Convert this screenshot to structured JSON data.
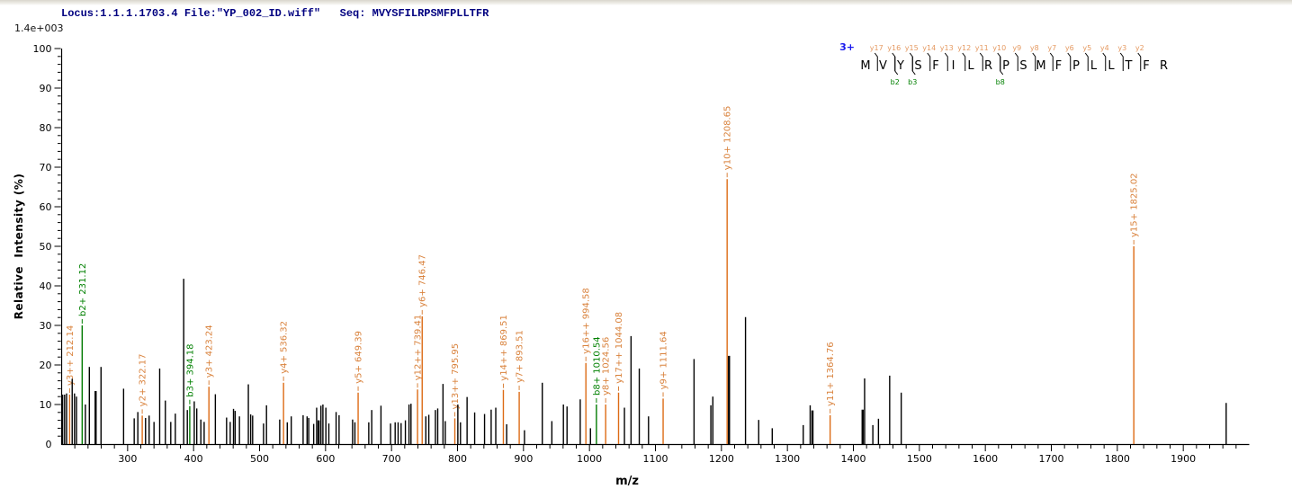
{
  "header": {
    "info_line": "Locus:1.1.1.1703.4 File:\"YP_002_ID.wiff\"   Seq: MVYSFILRPSMFPLLTFR",
    "scale_label": "1.4e+003"
  },
  "colors": {
    "background": "#ffffff",
    "axis": "#000000",
    "unassigned_peak": "#000000",
    "y_ion_line": "#dd6b15",
    "y_ion_label": "#d9823c",
    "ladder_y_label": "#e59a62",
    "b_ion_line": "#007a00",
    "b_ion_label": "#008000",
    "header_text": "#000080",
    "charge_text": "#1a1aee"
  },
  "ladder": {
    "charge_label": "3+",
    "residues": "MVYSFILRPSMFPLLTFR",
    "y_ion_junctions": [
      {
        "label": "y17",
        "after": 1
      },
      {
        "label": "y16",
        "after": 2
      },
      {
        "label": "y15",
        "after": 3
      },
      {
        "label": "y14",
        "after": 4
      },
      {
        "label": "y13",
        "after": 5
      },
      {
        "label": "y12",
        "after": 6
      },
      {
        "label": "y11",
        "after": 7
      },
      {
        "label": "y10",
        "after": 8
      },
      {
        "label": "y9",
        "after": 9
      },
      {
        "label": "y8",
        "after": 10
      },
      {
        "label": "y7",
        "after": 11
      },
      {
        "label": "y6",
        "after": 12
      },
      {
        "label": "y5",
        "after": 13
      },
      {
        "label": "y4",
        "after": 14
      },
      {
        "label": "y3",
        "after": 15
      },
      {
        "label": "y2",
        "after": 16
      }
    ],
    "b_ion_junctions": [
      {
        "label": "b2",
        "after": 2
      },
      {
        "label": "b3",
        "after": 3
      },
      {
        "label": "b8",
        "after": 8
      }
    ]
  },
  "chart_data": {
    "type": "bar",
    "subtype": "ms2_fragment_spectrum",
    "title": "",
    "xlabel": "m/z",
    "ylabel": "Relative  Intensity (%)",
    "xlim": [
      200,
      2000
    ],
    "ylim": [
      0,
      100
    ],
    "grid": false,
    "x_tick_labels": [
      300,
      400,
      500,
      600,
      700,
      800,
      900,
      1000,
      1100,
      1200,
      1300,
      1400,
      1500,
      1600,
      1700,
      1800,
      1900
    ],
    "x_minor_tick_step": 20,
    "x_major_tick_step": 100,
    "y_tick_labels": [
      0,
      10,
      20,
      30,
      40,
      50,
      60,
      70,
      80,
      90,
      100
    ],
    "y_minor_tick_step": 2,
    "y_major_tick_step": 10,
    "intensity_scale_note": "1.4e+003",
    "peaks": [
      {
        "mz": 201.5,
        "i": 12.5
      },
      {
        "mz": 204.5,
        "i": 12.5
      },
      {
        "mz": 207.5,
        "i": 12.8
      },
      {
        "mz": 212.14,
        "i": 12.5,
        "ion": "y3++",
        "label": "y3++ 212.14",
        "series": "y"
      },
      {
        "mz": 216.0,
        "i": 16.5
      },
      {
        "mz": 219.5,
        "i": 12.8
      },
      {
        "mz": 222.5,
        "i": 12.0
      },
      {
        "mz": 231.12,
        "i": 30.0,
        "ion": "b2+",
        "label": "b2+ 231.12",
        "series": "b"
      },
      {
        "mz": 236.0,
        "i": 10.0
      },
      {
        "mz": 242.0,
        "i": 19.5
      },
      {
        "mz": 251.5,
        "i": 13.4,
        "wide": true
      },
      {
        "mz": 259.7,
        "i": 19.5
      },
      {
        "mz": 293.9,
        "i": 14.0
      },
      {
        "mz": 310.0,
        "i": 6.5
      },
      {
        "mz": 315.5,
        "i": 8.1
      },
      {
        "mz": 322.17,
        "i": 7.2,
        "ion": "y2+",
        "label": "y2+ 322.17",
        "series": "y"
      },
      {
        "mz": 327.2,
        "i": 6.6
      },
      {
        "mz": 332.6,
        "i": 7.2
      },
      {
        "mz": 340.0,
        "i": 5.6
      },
      {
        "mz": 348.6,
        "i": 19.1
      },
      {
        "mz": 357.2,
        "i": 11.0
      },
      {
        "mz": 365.4,
        "i": 5.6
      },
      {
        "mz": 372.3,
        "i": 7.7
      },
      {
        "mz": 385.0,
        "i": 41.8
      },
      {
        "mz": 390.5,
        "i": 8.6
      },
      {
        "mz": 394.18,
        "i": 9.6,
        "ion": "b3+",
        "label": "b3+ 394.18",
        "series": "b"
      },
      {
        "mz": 401.0,
        "i": 10.8
      },
      {
        "mz": 404.8,
        "i": 9.0
      },
      {
        "mz": 411.0,
        "i": 6.2
      },
      {
        "mz": 416.0,
        "i": 5.6
      },
      {
        "mz": 423.24,
        "i": 14.5,
        "ion": "y3+",
        "label": "y3+ 423.24",
        "series": "y"
      },
      {
        "mz": 433.0,
        "i": 12.6
      },
      {
        "mz": 450.0,
        "i": 6.7
      },
      {
        "mz": 455.5,
        "i": 5.6
      },
      {
        "mz": 460.5,
        "i": 8.9
      },
      {
        "mz": 463.0,
        "i": 8.4
      },
      {
        "mz": 469.5,
        "i": 7.0
      },
      {
        "mz": 483.0,
        "i": 15.1
      },
      {
        "mz": 486.5,
        "i": 7.5
      },
      {
        "mz": 489.5,
        "i": 7.2
      },
      {
        "mz": 506.0,
        "i": 5.2
      },
      {
        "mz": 510.5,
        "i": 9.8
      },
      {
        "mz": 530.5,
        "i": 6.2
      },
      {
        "mz": 536.32,
        "i": 15.5,
        "ion": "y4+",
        "label": "y4+ 536.32",
        "series": "y"
      },
      {
        "mz": 542.0,
        "i": 5.5
      },
      {
        "mz": 548.0,
        "i": 7.0
      },
      {
        "mz": 566.0,
        "i": 7.3
      },
      {
        "mz": 572.0,
        "i": 7.0
      },
      {
        "mz": 574.5,
        "i": 6.6
      },
      {
        "mz": 582.0,
        "i": 5.1
      },
      {
        "mz": 586.5,
        "i": 9.2
      },
      {
        "mz": 589.5,
        "i": 6.0,
        "wide": true
      },
      {
        "mz": 593.0,
        "i": 9.7
      },
      {
        "mz": 596.0,
        "i": 10.0
      },
      {
        "mz": 600.5,
        "i": 9.2
      },
      {
        "mz": 605.0,
        "i": 5.2
      },
      {
        "mz": 616.0,
        "i": 8.1
      },
      {
        "mz": 620.5,
        "i": 7.3
      },
      {
        "mz": 641.0,
        "i": 6.2
      },
      {
        "mz": 644.5,
        "i": 5.5
      },
      {
        "mz": 649.39,
        "i": 13.0,
        "ion": "y5+",
        "label": "y5+ 649.39",
        "series": "y"
      },
      {
        "mz": 665.5,
        "i": 5.5
      },
      {
        "mz": 670.0,
        "i": 8.6
      },
      {
        "mz": 684.0,
        "i": 9.7
      },
      {
        "mz": 698.5,
        "i": 5.2
      },
      {
        "mz": 705.5,
        "i": 5.5
      },
      {
        "mz": 710.0,
        "i": 5.5
      },
      {
        "mz": 714.5,
        "i": 5.3
      },
      {
        "mz": 721.0,
        "i": 6.0
      },
      {
        "mz": 726.5,
        "i": 10.0
      },
      {
        "mz": 729.5,
        "i": 10.2
      },
      {
        "mz": 739.41,
        "i": 13.8,
        "ion": "y12++",
        "label": "y12++ 739.41",
        "series": "y"
      },
      {
        "mz": 746.47,
        "i": 32.3,
        "ion": "y6+",
        "label": "y6+ 746.47",
        "series": "y"
      },
      {
        "mz": 752.0,
        "i": 7.0
      },
      {
        "mz": 756.5,
        "i": 7.4
      },
      {
        "mz": 766.5,
        "i": 8.6
      },
      {
        "mz": 770.0,
        "i": 9.0
      },
      {
        "mz": 778.0,
        "i": 15.2
      },
      {
        "mz": 781.5,
        "i": 5.8
      },
      {
        "mz": 795.95,
        "i": 6.5,
        "ion": "y13++",
        "label": "y13++ 795.95",
        "series": "y"
      },
      {
        "mz": 800.5,
        "i": 10.0
      },
      {
        "mz": 804.5,
        "i": 5.5
      },
      {
        "mz": 814.5,
        "i": 11.9
      },
      {
        "mz": 826.0,
        "i": 8.0
      },
      {
        "mz": 841.0,
        "i": 7.6
      },
      {
        "mz": 851.0,
        "i": 8.7
      },
      {
        "mz": 858.0,
        "i": 9.2
      },
      {
        "mz": 869.51,
        "i": 13.7,
        "ion": "y14++",
        "label": "y14++ 869.51",
        "series": "y"
      },
      {
        "mz": 874.5,
        "i": 5.0
      },
      {
        "mz": 893.51,
        "i": 13.2,
        "ion": "y7+",
        "label": "y7+ 893.51",
        "series": "y"
      },
      {
        "mz": 901.5,
        "i": 3.5
      },
      {
        "mz": 928.5,
        "i": 15.5
      },
      {
        "mz": 943.0,
        "i": 5.8
      },
      {
        "mz": 960.5,
        "i": 10.0
      },
      {
        "mz": 966.0,
        "i": 9.5
      },
      {
        "mz": 986.0,
        "i": 11.3
      },
      {
        "mz": 994.58,
        "i": 20.5,
        "ion": "y16++",
        "label": "y16++ 994.58",
        "series": "y"
      },
      {
        "mz": 1001.5,
        "i": 4.0
      },
      {
        "mz": 1010.54,
        "i": 10.0,
        "ion": "b8+",
        "label": "b8+ 1010.54",
        "series": "b"
      },
      {
        "mz": 1024.56,
        "i": 10.0,
        "ion": "y8+",
        "label": "y8+ 1024.56",
        "series": "y"
      },
      {
        "mz": 1044.08,
        "i": 13.0,
        "ion": "y17++",
        "label": "y17++ 1044.08",
        "series": "y"
      },
      {
        "mz": 1053.0,
        "i": 9.2
      },
      {
        "mz": 1063.0,
        "i": 27.3
      },
      {
        "mz": 1075.5,
        "i": 19.1
      },
      {
        "mz": 1089.5,
        "i": 7.0
      },
      {
        "mz": 1111.64,
        "i": 11.5,
        "ion": "y9+",
        "label": "y9+ 1111.64",
        "series": "y"
      },
      {
        "mz": 1158.5,
        "i": 21.5
      },
      {
        "mz": 1184.0,
        "i": 9.8
      },
      {
        "mz": 1187.0,
        "i": 12.0
      },
      {
        "mz": 1208.65,
        "i": 67.0,
        "ion": "y10+",
        "label": "y10+ 1208.65",
        "series": "y"
      },
      {
        "mz": 1211.5,
        "i": 22.3,
        "wide": true
      },
      {
        "mz": 1236.5,
        "i": 32.1
      },
      {
        "mz": 1256.5,
        "i": 6.1
      },
      {
        "mz": 1277.0,
        "i": 4.0
      },
      {
        "mz": 1324.0,
        "i": 4.8
      },
      {
        "mz": 1334.5,
        "i": 9.8
      },
      {
        "mz": 1338.0,
        "i": 8.5,
        "wide": true
      },
      {
        "mz": 1364.76,
        "i": 7.3,
        "ion": "y11+",
        "label": "y11+ 1364.76",
        "series": "y"
      },
      {
        "mz": 1414.0,
        "i": 8.7,
        "wide": true
      },
      {
        "mz": 1417.0,
        "i": 16.6
      },
      {
        "mz": 1429.5,
        "i": 4.8
      },
      {
        "mz": 1438.0,
        "i": 6.4
      },
      {
        "mz": 1455.0,
        "i": 17.3
      },
      {
        "mz": 1472.5,
        "i": 13.0
      },
      {
        "mz": 1825.02,
        "i": 50.0,
        "ion": "y15+",
        "label": "y15+ 1825.02",
        "series": "y"
      },
      {
        "mz": 1965.0,
        "i": 10.4
      }
    ]
  }
}
